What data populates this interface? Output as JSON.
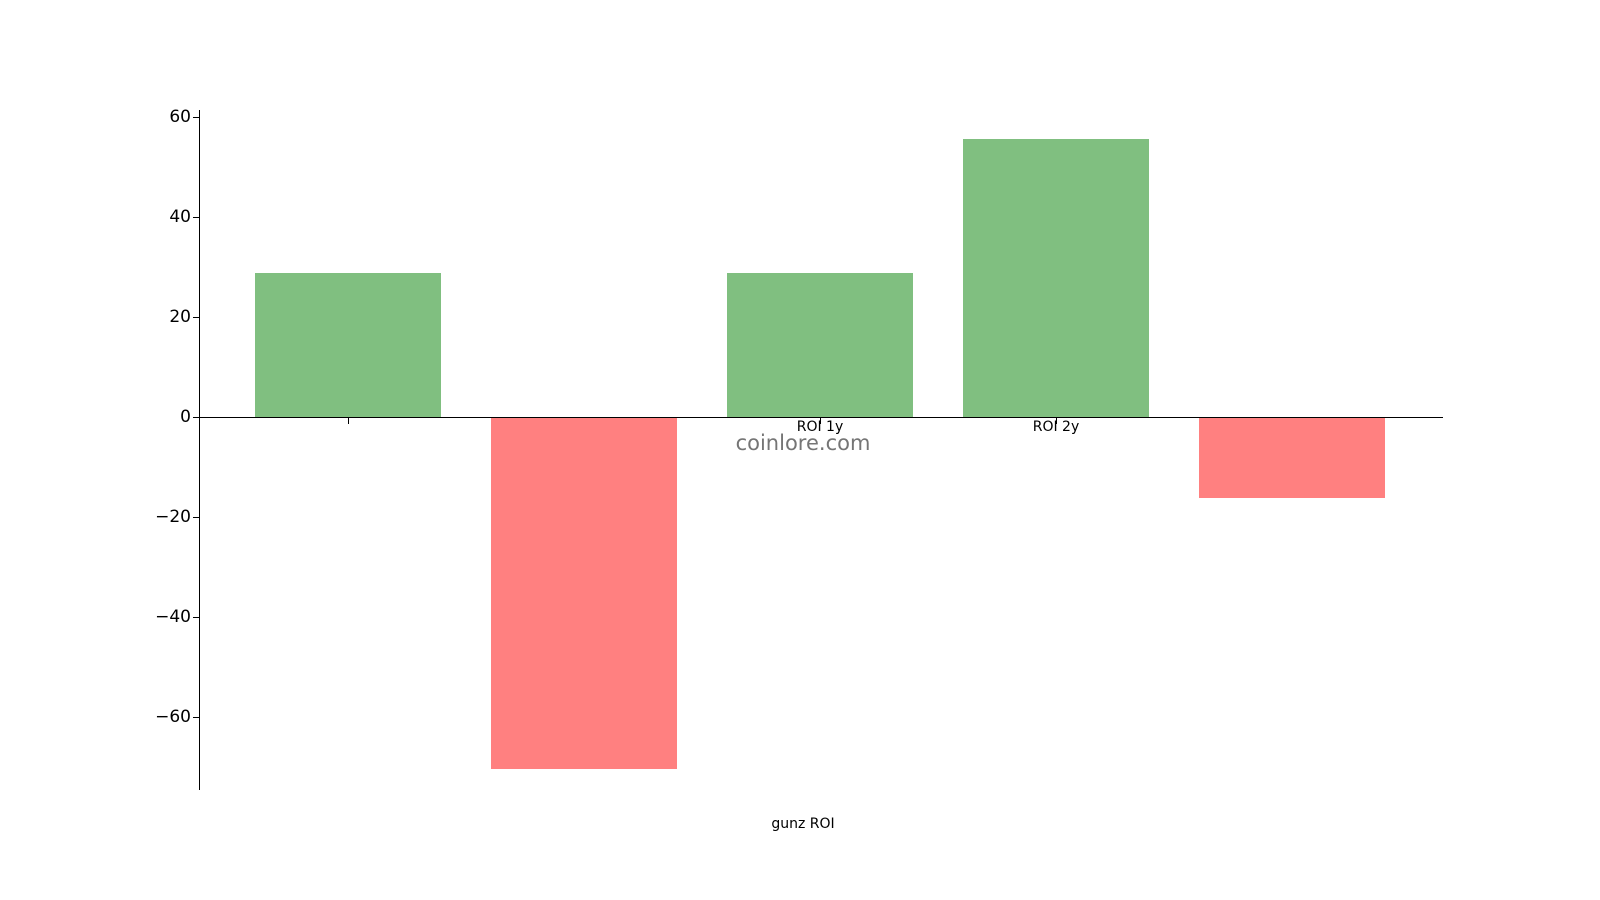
{
  "chart_data": {
    "type": "bar",
    "categories": [
      "",
      "",
      "ROI 1y",
      "ROI 2y",
      ""
    ],
    "values": [
      28.8,
      -70.4,
      28.8,
      55.6,
      -16.1
    ],
    "series_name": "gunz ROI",
    "bar_colors": [
      "#80bf80",
      "#ff8080",
      "#80bf80",
      "#80bf80",
      "#ff8080"
    ],
    "positive_color": "#80bf80",
    "negative_color": "#ff8080",
    "title": "",
    "xlabel": "gunz ROI",
    "ylabel": "",
    "ylim": [
      -75,
      62
    ],
    "yticks": [
      60,
      40,
      20,
      0,
      -20,
      -40,
      -60
    ],
    "ytick_labels": [
      "60",
      "40",
      "20",
      "0",
      "−20",
      "−40",
      "−60"
    ],
    "grid": false,
    "legend": "none",
    "axis_color": "#000000",
    "tick_text_color": "#000000"
  },
  "watermark": {
    "text": "coinlore.com",
    "color": "#757575"
  }
}
